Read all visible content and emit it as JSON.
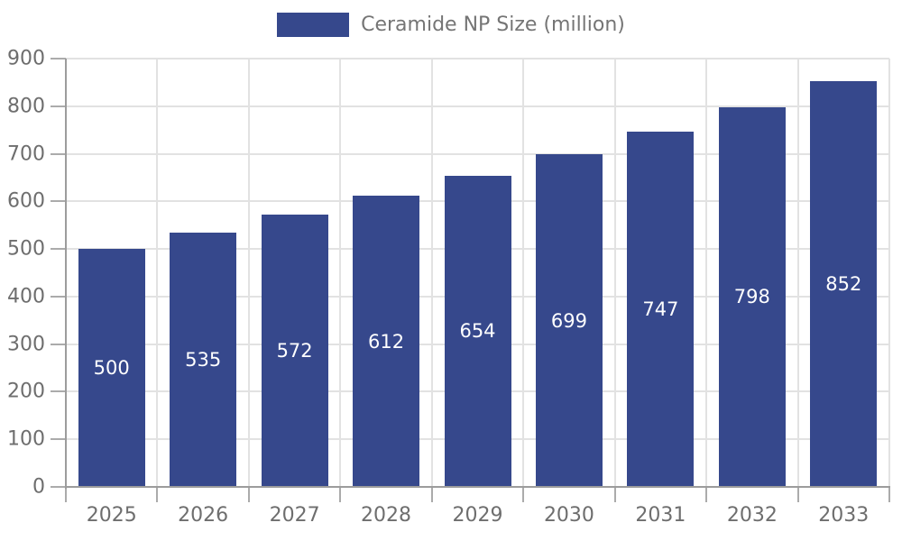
{
  "chart_data": {
    "type": "bar",
    "title": "",
    "legend": "Ceramide NP Size (million)",
    "legend_position": "top-center",
    "categories": [
      "2025",
      "2026",
      "2027",
      "2028",
      "2029",
      "2030",
      "2031",
      "2032",
      "2033"
    ],
    "values": [
      500,
      535,
      572,
      612,
      654,
      699,
      747,
      798,
      852
    ],
    "xlabel": "",
    "ylabel": "",
    "ylim": [
      0,
      900
    ],
    "yticks": [
      0,
      100,
      200,
      300,
      400,
      500,
      600,
      700,
      800,
      900
    ],
    "grid": "on",
    "bar_labels": "inside-center",
    "colors": {
      "bar": "#36488C",
      "bar_label": "#FFFFFF",
      "grid": "#E2E2E2",
      "axis": "#9C9C9C",
      "tick": "#ABABAB",
      "tick_label": "#6E6E6E",
      "legend_text": "#757575",
      "background": "#FFFFFF"
    }
  }
}
